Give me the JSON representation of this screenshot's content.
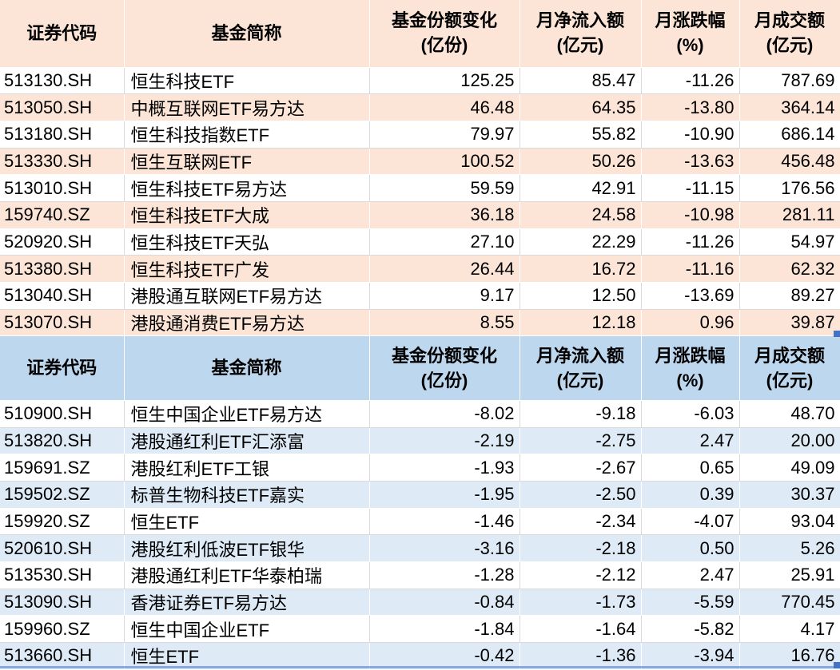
{
  "theme": {
    "table1_fill": "#FCE4D6",
    "table2_header_fill": "#BDD7EE",
    "table2_row_fill": "#DEEBF7",
    "gridline_gray": "#D9D9D9",
    "gridline_white": "#FFFFFF",
    "selection_handle": "#4472C4",
    "selection_range_border": "#6A93D8",
    "text_color": "#000000"
  },
  "chart_data": [
    {
      "type": "table",
      "name": "monthly-net-inflow-funds",
      "theme": {
        "header_fill": "#FCE4D6",
        "row_alt_fill": "#FCE4D6"
      },
      "columns": [
        {
          "label": "证券代码",
          "sub": ""
        },
        {
          "label": "基金简称",
          "sub": ""
        },
        {
          "label": "基金份额变化",
          "sub": "(亿份)"
        },
        {
          "label": "月净流入额",
          "sub": "(亿元)"
        },
        {
          "label": "月涨跌幅",
          "sub": "(%)"
        },
        {
          "label": "月成交额",
          "sub": "(亿元)"
        }
      ],
      "rows": [
        [
          "513130.SH",
          "恒生科技ETF",
          "125.25",
          "85.47",
          "-11.26",
          "787.69"
        ],
        [
          "513050.SH",
          "中概互联网ETF易方达",
          "46.48",
          "64.35",
          "-13.80",
          "364.14"
        ],
        [
          "513180.SH",
          "恒生科技指数ETF",
          "79.97",
          "55.82",
          "-10.90",
          "686.14"
        ],
        [
          "513330.SH",
          "恒生互联网ETF",
          "100.52",
          "50.26",
          "-13.63",
          "456.48"
        ],
        [
          "513010.SH",
          "恒生科技ETF易方达",
          "59.59",
          "42.91",
          "-11.15",
          "176.56"
        ],
        [
          "159740.SZ",
          "恒生科技ETF大成",
          "36.18",
          "24.58",
          "-10.98",
          "281.11"
        ],
        [
          "520920.SH",
          "恒生科技ETF天弘",
          "27.10",
          "22.29",
          "-11.26",
          "54.97"
        ],
        [
          "513380.SH",
          "恒生科技ETF广发",
          "26.44",
          "16.72",
          "-11.16",
          "62.32"
        ],
        [
          "513040.SH",
          "港股通互联网ETF易方达",
          "9.17",
          "12.50",
          "-13.69",
          "89.27"
        ],
        [
          "513070.SH",
          "港股通消费ETF易方达",
          "8.55",
          "12.18",
          "0.96",
          "39.87"
        ]
      ]
    },
    {
      "type": "table",
      "name": "monthly-net-outflow-funds",
      "theme": {
        "header_fill": "#BDD7EE",
        "row_alt_fill": "#DEEBF7"
      },
      "columns": [
        {
          "label": "证券代码",
          "sub": ""
        },
        {
          "label": "基金简称",
          "sub": ""
        },
        {
          "label": "基金份额变化",
          "sub": "(亿份)"
        },
        {
          "label": "月净流入额",
          "sub": "(亿元)"
        },
        {
          "label": "月涨跌幅",
          "sub": "(%)"
        },
        {
          "label": "月成交额",
          "sub": "(亿元)"
        }
      ],
      "rows": [
        [
          "510900.SH",
          "恒生中国企业ETF易方达",
          "-8.02",
          "-9.18",
          "-6.03",
          "48.70"
        ],
        [
          "513820.SH",
          "港股通红利ETF汇添富",
          "-2.19",
          "-2.75",
          "2.47",
          "20.00"
        ],
        [
          "159691.SZ",
          "港股红利ETF工银",
          "-1.93",
          "-2.67",
          "0.65",
          "49.09"
        ],
        [
          "159502.SZ",
          "标普生物科技ETF嘉实",
          "-1.95",
          "-2.50",
          "0.39",
          "30.37"
        ],
        [
          "159920.SZ",
          "恒生ETF",
          "-1.46",
          "-2.34",
          "-4.07",
          "93.04"
        ],
        [
          "520610.SH",
          "港股红利低波ETF银华",
          "-3.16",
          "-2.18",
          "0.50",
          "5.26"
        ],
        [
          "513530.SH",
          "港股通红利ETF华泰柏瑞",
          "-1.28",
          "-2.12",
          "2.47",
          "25.91"
        ],
        [
          "513090.SH",
          "香港证券ETF易方达",
          "-0.84",
          "-1.73",
          "-5.59",
          "770.45"
        ],
        [
          "159960.SZ",
          "恒生中国企业ETF",
          "-1.84",
          "-1.64",
          "-5.82",
          "4.17"
        ],
        [
          "513660.SH",
          "恒生ETF",
          "-0.42",
          "-1.36",
          "-3.94",
          "16.76"
        ]
      ]
    }
  ]
}
